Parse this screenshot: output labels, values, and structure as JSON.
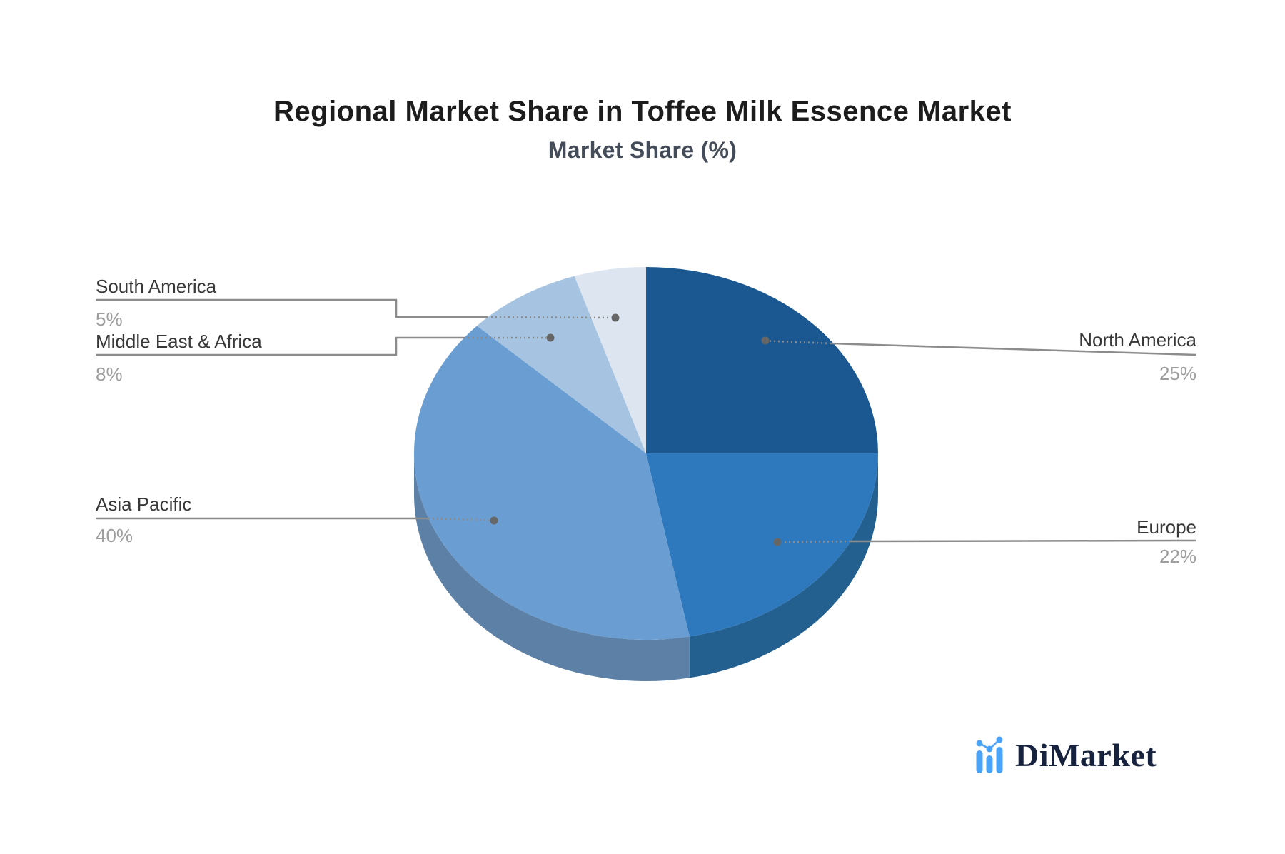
{
  "title": "Regional Market Share in Toffee Milk Essence Market",
  "subtitle": "Market Share (%)",
  "chart_data": {
    "type": "pie",
    "style": "3d",
    "title": "Regional Market Share in Toffee Milk Essence Market",
    "subtitle": "Market Share (%)",
    "unit": "%",
    "rotation": "clockwise-from-top",
    "legend": "none",
    "label_text_color": "#383838",
    "value_text_color": "#9e9e9e",
    "leader_line_color": "#8c8c8c",
    "slices": [
      {
        "label": "North America",
        "value": 25,
        "display": "25%",
        "color": "#1b5791",
        "side_color": "#24608f"
      },
      {
        "label": "Europe",
        "value": 22,
        "display": "22%",
        "color": "#2e79bd",
        "side_color": "#24608f"
      },
      {
        "label": "Asia Pacific",
        "value": 40,
        "display": "40%",
        "color": "#6a9dd2",
        "side_color": "#5d81a6"
      },
      {
        "label": "Middle East & Africa",
        "value": 8,
        "display": "8%",
        "color": "#a6c4e2",
        "side_color": "#8fb0cf"
      },
      {
        "label": "South America",
        "value": 5,
        "display": "5%",
        "color": "#dde6f0",
        "side_color": "#c2cfdd"
      }
    ]
  },
  "branding": {
    "logo_text": "DiMarket",
    "logo_icon": "bar-line-chart-logo-icon",
    "logo_icon_color": "#4ba3f7",
    "logo_text_color": "#17233e"
  }
}
